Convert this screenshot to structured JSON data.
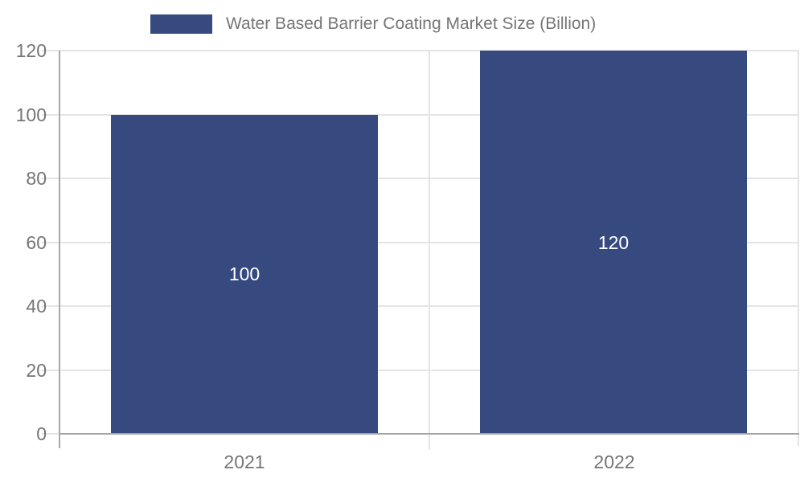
{
  "chart_data": {
    "type": "bar",
    "title": "Water Based Barrier Coating Market Size (Billion)",
    "categories": [
      "2021",
      "2022"
    ],
    "values": [
      100,
      120
    ],
    "bar_value_labels": [
      "100",
      "120"
    ],
    "xlabel": "",
    "ylabel": "",
    "ylim": [
      0,
      120
    ],
    "yticks": [
      0,
      20,
      40,
      60,
      80,
      100,
      120
    ],
    "grid": true,
    "legend_position": "top",
    "colors": {
      "bar": "#364A80",
      "bar_value_text": "#ffffff",
      "axis_text": "#757575",
      "legend_text": "#757575",
      "gridline": "#e4e4e4",
      "axis_line": "#a8a8a8",
      "baseline": "#a3a3a3"
    }
  }
}
